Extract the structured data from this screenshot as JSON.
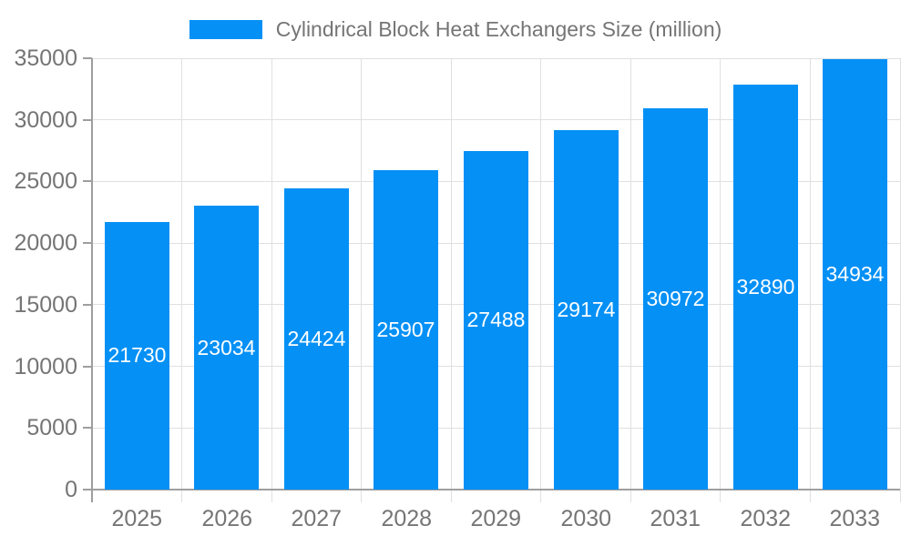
{
  "chart_data": {
    "type": "bar",
    "title": "Cylindrical Block Heat Exchangers Size (million)",
    "categories": [
      "2025",
      "2026",
      "2027",
      "2028",
      "2029",
      "2030",
      "2031",
      "2032",
      "2033"
    ],
    "series": [
      {
        "name": "Cylindrical Block Heat Exchangers Size (million)",
        "values": [
          21730,
          23034,
          24424,
          25907,
          27488,
          29174,
          30972,
          32890,
          34934
        ]
      }
    ],
    "xlabel": "",
    "ylabel": "",
    "ylim": [
      0,
      35000
    ],
    "y_ticks": [
      0,
      5000,
      10000,
      15000,
      20000,
      25000,
      30000,
      35000
    ],
    "grid": "horizontal gridlines and vertical category-boundary gridlines",
    "legend_position": "top-center",
    "value_labels": "inside bars, vertically centered, white",
    "colors": {
      "bar": "#0590f5",
      "grid": "#e0e0e0",
      "axis": "#9e9e9e",
      "tick_text": "#757575",
      "value_label": "#ffffff"
    }
  }
}
